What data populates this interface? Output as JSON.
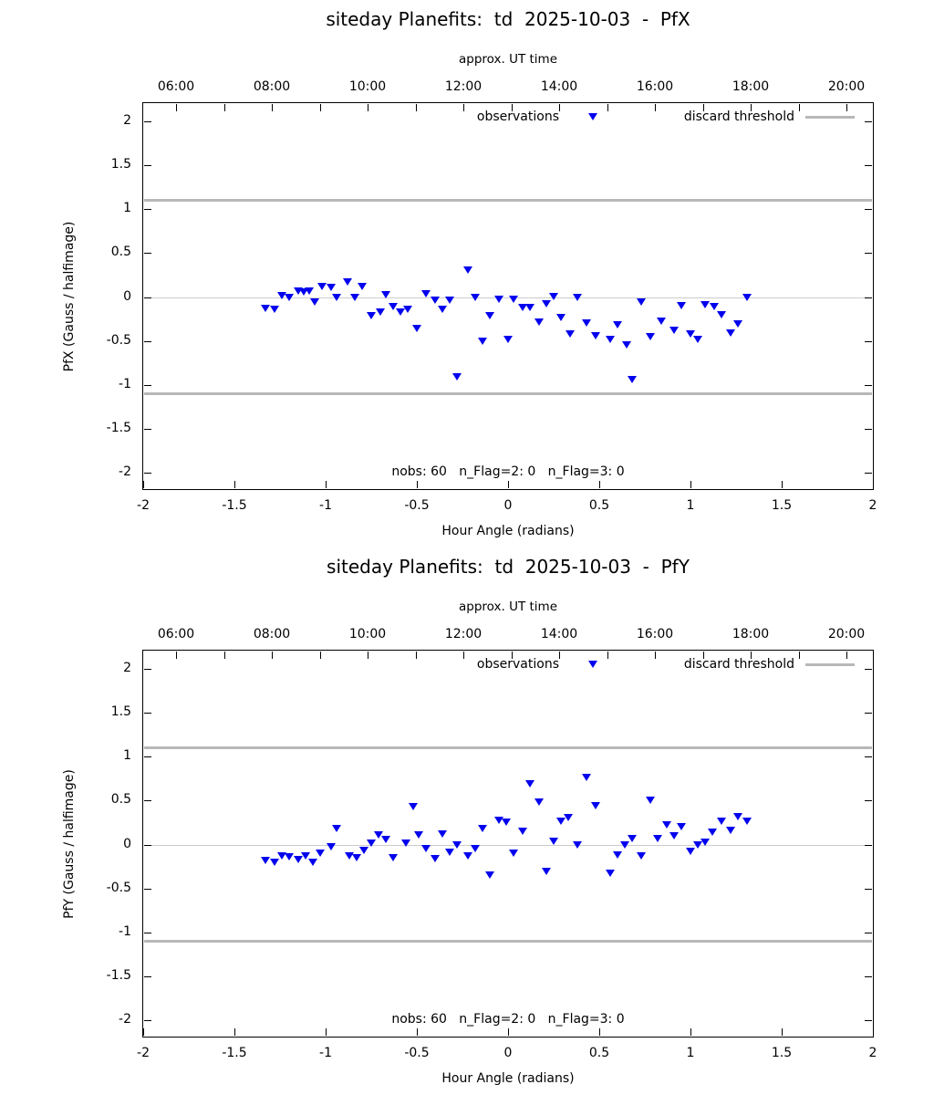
{
  "colors": {
    "marker": "#0000ee",
    "threshold": "#b8b8b8",
    "zero_line": "#cccccc",
    "border": "#000000"
  },
  "chart_data": [
    {
      "type": "scatter",
      "title": "siteday Planefits:  td  2025-10-03  -  PfX",
      "x2label": "approx. UT time",
      "xlabel": "Hour Angle (radians)",
      "ylabel": "PfX (Gauss / halfimage)",
      "annotation": "nobs: 60   n_Flag=2: 0   n_Flag=3: 0",
      "xlim": [
        -2,
        2
      ],
      "ylim": [
        -2,
        2
      ],
      "grid": "zero-line-only",
      "legend_position": "top-inside",
      "xticks": [
        -2,
        -1.5,
        -1,
        -0.5,
        0,
        0.5,
        1,
        1.5,
        2
      ],
      "yticks": [
        -2,
        -1.5,
        -1,
        -0.5,
        0,
        0.5,
        1,
        1.5,
        2
      ],
      "x2_ticklabels": [
        "06:00",
        "08:00",
        "10:00",
        "12:00",
        "14:00",
        "16:00",
        "18:00",
        "20:00"
      ],
      "threshold_y": [
        1.1,
        -1.1
      ],
      "legend": [
        {
          "label": "observations",
          "marker": "filled-triangle-down"
        },
        {
          "label": "discard threshold",
          "marker": "line"
        }
      ],
      "series": [
        {
          "name": "observations",
          "points": [
            [
              -1.33,
              -0.13
            ],
            [
              -1.28,
              -0.14
            ],
            [
              -1.24,
              0.02
            ],
            [
              -1.2,
              0
            ],
            [
              -1.15,
              0.07
            ],
            [
              -1.12,
              0.06
            ],
            [
              -1.09,
              0.07
            ],
            [
              -1.06,
              -0.06
            ],
            [
              -1.02,
              0.12
            ],
            [
              -0.97,
              0.11
            ],
            [
              -0.94,
              0
            ],
            [
              -0.88,
              0.17
            ],
            [
              -0.84,
              0
            ],
            [
              -0.8,
              0.12
            ],
            [
              -0.75,
              -0.21
            ],
            [
              -0.7,
              -0.17
            ],
            [
              -0.67,
              0.03
            ],
            [
              -0.63,
              -0.11
            ],
            [
              -0.59,
              -0.17
            ],
            [
              -0.55,
              -0.14
            ],
            [
              -0.5,
              -0.36
            ],
            [
              -0.45,
              0.04
            ],
            [
              -0.4,
              -0.04
            ],
            [
              -0.36,
              -0.14
            ],
            [
              -0.32,
              -0.04
            ],
            [
              -0.28,
              -0.91
            ],
            [
              -0.22,
              0.31
            ],
            [
              -0.18,
              0
            ],
            [
              -0.14,
              -0.5
            ],
            [
              -0.1,
              -0.21
            ],
            [
              -0.05,
              -0.03
            ],
            [
              0,
              -0.48
            ],
            [
              0.03,
              -0.03
            ],
            [
              0.08,
              -0.12
            ],
            [
              0.12,
              -0.12
            ],
            [
              0.17,
              -0.29
            ],
            [
              0.21,
              -0.08
            ],
            [
              0.25,
              0.01
            ],
            [
              0.29,
              -0.23
            ],
            [
              0.34,
              -0.42
            ],
            [
              0.38,
              0
            ],
            [
              0.43,
              -0.3
            ],
            [
              0.48,
              -0.44
            ],
            [
              0.56,
              -0.48
            ],
            [
              0.6,
              -0.32
            ],
            [
              0.65,
              -0.55
            ],
            [
              0.68,
              -0.94
            ],
            [
              0.73,
              -0.06
            ],
            [
              0.78,
              -0.45
            ],
            [
              0.84,
              -0.28
            ],
            [
              0.91,
              -0.38
            ],
            [
              0.95,
              -0.1
            ],
            [
              1,
              -0.42
            ],
            [
              1.04,
              -0.48
            ],
            [
              1.08,
              -0.09
            ],
            [
              1.13,
              -0.11
            ],
            [
              1.17,
              -0.2
            ],
            [
              1.22,
              -0.41
            ],
            [
              1.26,
              -0.31
            ],
            [
              1.31,
              0
            ]
          ]
        }
      ]
    },
    {
      "type": "scatter",
      "title": "siteday Planefits:  td  2025-10-03  -  PfY",
      "x2label": "approx. UT time",
      "xlabel": "Hour Angle (radians)",
      "ylabel": "PfY (Gauss / halfimage)",
      "annotation": "nobs: 60   n_Flag=2: 0   n_Flag=3: 0",
      "xlim": [
        -2,
        2
      ],
      "ylim": [
        -2,
        2
      ],
      "grid": "zero-line-only",
      "legend_position": "top-inside",
      "xticks": [
        -2,
        -1.5,
        -1,
        -0.5,
        0,
        0.5,
        1,
        1.5,
        2
      ],
      "yticks": [
        -2,
        -1.5,
        -1,
        -0.5,
        0,
        0.5,
        1,
        1.5,
        2
      ],
      "x2_ticklabels": [
        "06:00",
        "08:00",
        "10:00",
        "12:00",
        "14:00",
        "16:00",
        "18:00",
        "20:00"
      ],
      "threshold_y": [
        1.1,
        -1.1
      ],
      "legend": [
        {
          "label": "observations",
          "marker": "filled-triangle-down"
        },
        {
          "label": "discard threshold",
          "marker": "line"
        }
      ],
      "series": [
        {
          "name": "observations",
          "points": [
            [
              -1.33,
              -0.18
            ],
            [
              -1.28,
              -0.2
            ],
            [
              -1.24,
              -0.13
            ],
            [
              -1.2,
              -0.14
            ],
            [
              -1.15,
              -0.17
            ],
            [
              -1.11,
              -0.13
            ],
            [
              -1.07,
              -0.2
            ],
            [
              -1.03,
              -0.1
            ],
            [
              -0.97,
              -0.03
            ],
            [
              -0.94,
              0.18
            ],
            [
              -0.87,
              -0.13
            ],
            [
              -0.83,
              -0.15
            ],
            [
              -0.79,
              -0.07
            ],
            [
              -0.75,
              0.02
            ],
            [
              -0.71,
              0.11
            ],
            [
              -0.67,
              0.06
            ],
            [
              -0.63,
              -0.15
            ],
            [
              -0.56,
              0.02
            ],
            [
              -0.52,
              0.43
            ],
            [
              -0.49,
              0.11
            ],
            [
              -0.45,
              -0.05
            ],
            [
              -0.4,
              -0.16
            ],
            [
              -0.36,
              0.12
            ],
            [
              -0.32,
              -0.09
            ],
            [
              -0.28,
              0
            ],
            [
              -0.22,
              -0.13
            ],
            [
              -0.18,
              -0.05
            ],
            [
              -0.14,
              0.18
            ],
            [
              -0.1,
              -0.35
            ],
            [
              -0.05,
              0.28
            ],
            [
              -0.01,
              0.25
            ],
            [
              0.03,
              -0.1
            ],
            [
              0.08,
              0.15
            ],
            [
              0.12,
              0.69
            ],
            [
              0.17,
              0.48
            ],
            [
              0.21,
              -0.31
            ],
            [
              0.25,
              0.04
            ],
            [
              0.29,
              0.27
            ],
            [
              0.33,
              0.31
            ],
            [
              0.38,
              -0.01
            ],
            [
              0.43,
              0.76
            ],
            [
              0.48,
              0.44
            ],
            [
              0.56,
              -0.33
            ],
            [
              0.6,
              -0.12
            ],
            [
              0.64,
              -0.01
            ],
            [
              0.68,
              0.07
            ],
            [
              0.73,
              -0.13
            ],
            [
              0.78,
              0.5
            ],
            [
              0.82,
              0.07
            ],
            [
              0.87,
              0.22
            ],
            [
              0.91,
              0.1
            ],
            [
              0.95,
              0.2
            ],
            [
              1,
              -0.08
            ],
            [
              1.04,
              0
            ],
            [
              1.08,
              0.03
            ],
            [
              1.12,
              0.14
            ],
            [
              1.17,
              0.27
            ],
            [
              1.22,
              0.16
            ],
            [
              1.26,
              0.32
            ],
            [
              1.31,
              0.26
            ]
          ]
        }
      ]
    }
  ]
}
